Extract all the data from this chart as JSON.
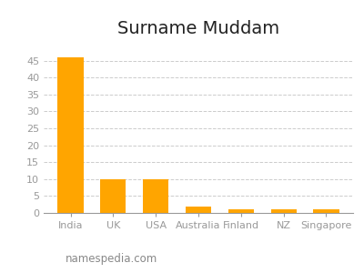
{
  "title": "Surname Muddam",
  "categories": [
    "India",
    "UK",
    "USA",
    "Australia",
    "Finland",
    "NZ",
    "Singapore"
  ],
  "values": [
    46,
    10,
    10,
    2,
    1,
    1,
    1
  ],
  "bar_color": "#FFA500",
  "background_color": "#ffffff",
  "ylim": [
    0,
    50
  ],
  "yticks": [
    0,
    5,
    10,
    15,
    20,
    25,
    30,
    35,
    40,
    45
  ],
  "grid_color": "#cccccc",
  "title_fontsize": 14,
  "tick_fontsize": 8,
  "tick_color": "#999999",
  "footer_text": "namespedia.com",
  "footer_fontsize": 8.5,
  "footer_color": "#888888"
}
